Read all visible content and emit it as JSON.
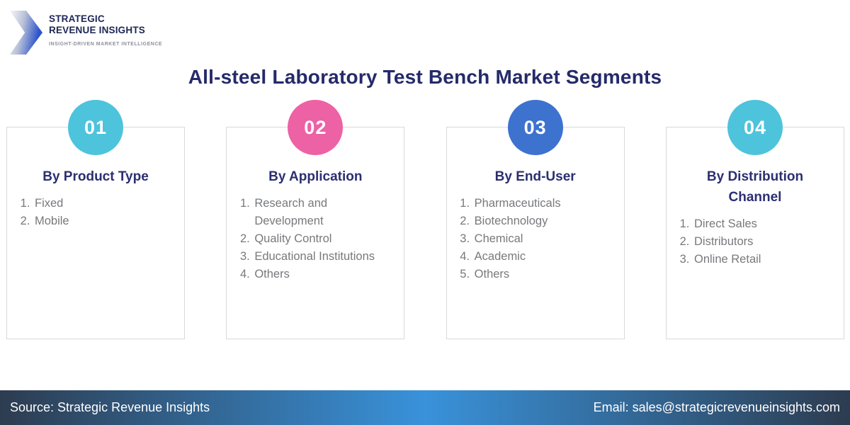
{
  "logo": {
    "line1": "STRATEGIC",
    "line2": "REVENUE INSIGHTS",
    "tagline": "INSIGHT-DRIVEN MARKET INTELLIGENCE"
  },
  "title": "All-steel Laboratory Test Bench Market Segments",
  "colors": {
    "title_navy": "#252a6a",
    "heading_navy": "#2b2f71",
    "list_gray": "#77797c",
    "cyan": "#4ec3dc",
    "pink": "#ed61a5",
    "blue": "#3d72cf",
    "footer_dark": "#2d3c50",
    "footer_blue": "#3992da"
  },
  "segments": [
    {
      "number": "01",
      "color": "#4ec3dc",
      "title": "By Product Type",
      "items": [
        "Fixed",
        "Mobile"
      ]
    },
    {
      "number": "02",
      "color": "#ed61a5",
      "title": "By Application",
      "items": [
        "Research and Development",
        "Quality Control",
        "Educational Institutions",
        "Others"
      ]
    },
    {
      "number": "03",
      "color": "#3d72cf",
      "title": "By End-User",
      "items": [
        "Pharmaceuticals",
        "Biotechnology",
        "Chemical",
        "Academic",
        "Others"
      ]
    },
    {
      "number": "04",
      "color": "#4ec3dc",
      "title": "By Distribution Channel",
      "items": [
        "Direct Sales",
        "Distributors",
        "Online Retail"
      ]
    }
  ],
  "footer": {
    "source": "Source: Strategic Revenue Insights",
    "email": "Email: sales@strategicrevenueinsights.com"
  }
}
